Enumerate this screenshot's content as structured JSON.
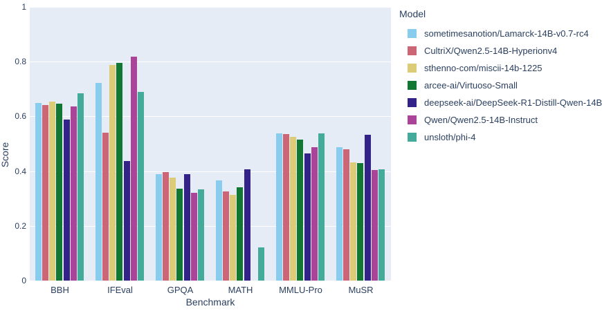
{
  "chart_data": {
    "type": "bar",
    "grouping": "grouped",
    "categories": [
      "BBH",
      "IFEval",
      "GPQA",
      "MATH",
      "MMLU-Pro",
      "MuSR"
    ],
    "series": [
      {
        "name": "sometimesanotion/Lamarck-14B-v0.7-rc4",
        "color": "#88CCEE",
        "values": [
          0.65,
          0.721,
          0.388,
          0.365,
          0.537,
          0.488
        ]
      },
      {
        "name": "CultriX/Qwen2.5-14B-Hyperionv4",
        "color": "#CC6677",
        "values": [
          0.642,
          0.541,
          0.396,
          0.327,
          0.536,
          0.48
        ]
      },
      {
        "name": "sthenno-com/miscii-14b-1225",
        "color": "#DDCC77",
        "values": [
          0.653,
          0.789,
          0.377,
          0.312,
          0.526,
          0.433
        ]
      },
      {
        "name": "arcee-ai/Virtuoso-Small",
        "color": "#117733",
        "values": [
          0.647,
          0.795,
          0.335,
          0.34,
          0.516,
          0.429
        ]
      },
      {
        "name": "deepseek-ai/DeepSeek-R1-Distill-Qwen-14B",
        "color": "#332288",
        "values": [
          0.589,
          0.437,
          0.388,
          0.407,
          0.465,
          0.533
        ]
      },
      {
        "name": "Qwen/Qwen2.5-14B-Instruct",
        "color": "#AA4499",
        "values": [
          0.637,
          0.817,
          0.32,
          0.0,
          0.488,
          0.404
        ]
      },
      {
        "name": "unsloth/phi-4",
        "color": "#44AA99",
        "values": [
          0.685,
          0.69,
          0.334,
          0.122,
          0.537,
          0.406
        ]
      }
    ],
    "title": "",
    "xlabel": "Benchmark",
    "ylabel": "Score",
    "ylim": [
      0,
      1
    ],
    "yticks": [
      0,
      0.2,
      0.4,
      0.6,
      0.8,
      1
    ],
    "ytick_labels": [
      "0",
      "0.2",
      "0.4",
      "0.6",
      "0.8",
      "1"
    ],
    "legend_title": "Model",
    "legend_position": "right",
    "grid": true
  },
  "style": {
    "plot_bg": "#E5ECF6",
    "grid_color": "#FFFFFF",
    "text_color": "#2a3f5f",
    "fig_bg": "#FFFFFF"
  }
}
